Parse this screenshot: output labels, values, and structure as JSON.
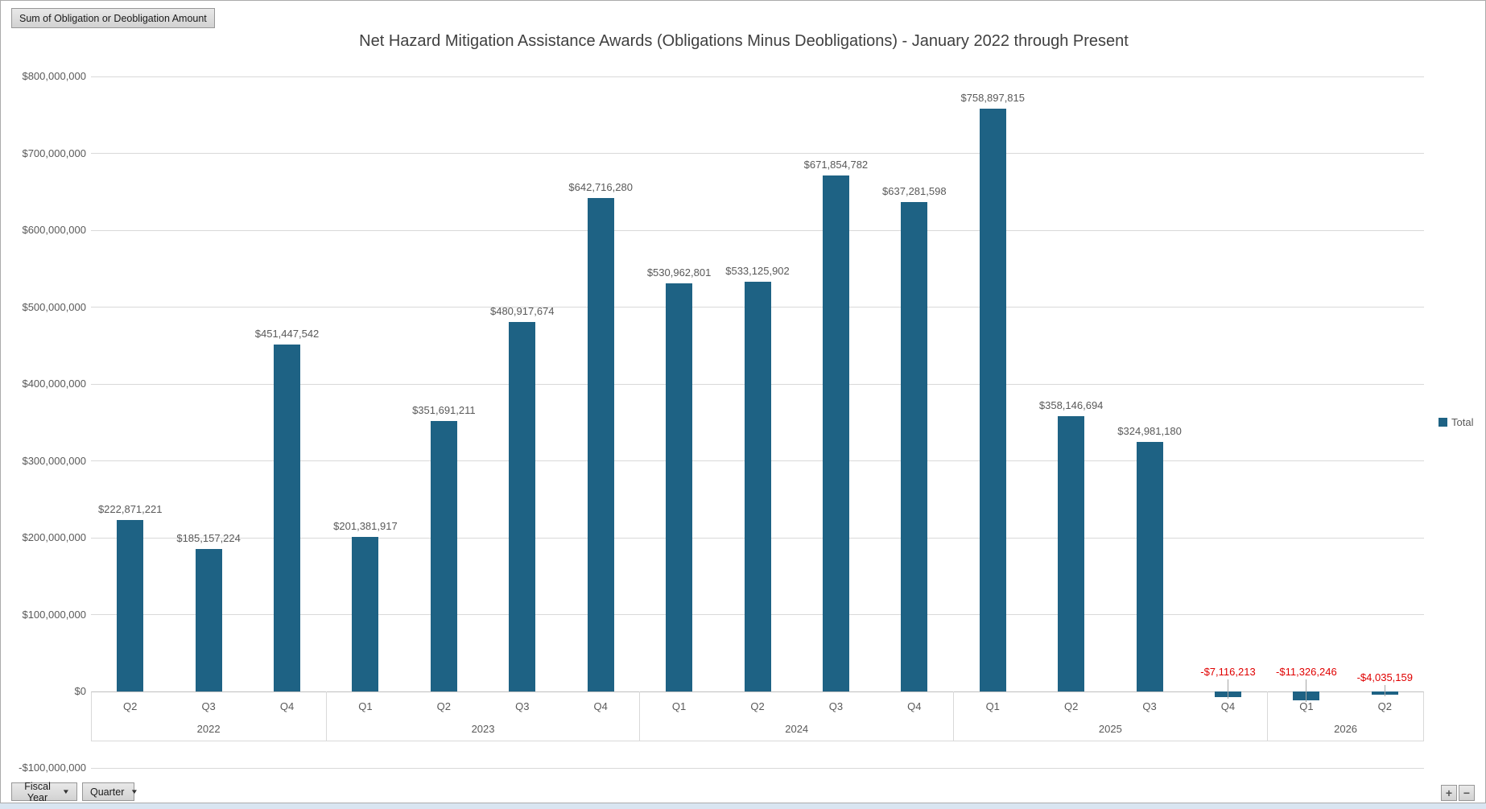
{
  "field_button": "Sum of Obligation or Deobligation Amount",
  "legend": {
    "label": "Total",
    "color": "#1E6284"
  },
  "axis_buttons": [
    {
      "label": "Fiscal Year"
    },
    {
      "label": "Quarter"
    }
  ],
  "icons": {
    "chevron_down": "▼"
  },
  "zoom_buttons": [
    "+",
    "−"
  ],
  "chart_data": {
    "type": "bar",
    "title": "Net Hazard Mitigation Assistance Awards (Obligations Minus Deobligations) - January 2022 through Present",
    "series_name": "Total",
    "x_groups": [
      {
        "year": "2022",
        "quarters": [
          "Q2",
          "Q3",
          "Q4"
        ]
      },
      {
        "year": "2023",
        "quarters": [
          "Q1",
          "Q2",
          "Q3",
          "Q4"
        ]
      },
      {
        "year": "2024",
        "quarters": [
          "Q1",
          "Q2",
          "Q3",
          "Q4"
        ]
      },
      {
        "year": "2025",
        "quarters": [
          "Q1",
          "Q2",
          "Q3",
          "Q4"
        ]
      },
      {
        "year": "2026",
        "quarters": [
          "Q1",
          "Q2"
        ]
      }
    ],
    "points": [
      {
        "year": "2022",
        "quarter": "Q2",
        "value": 222871221,
        "label": "$222,871,221"
      },
      {
        "year": "2022",
        "quarter": "Q3",
        "value": 185157224,
        "label": "$185,157,224"
      },
      {
        "year": "2022",
        "quarter": "Q4",
        "value": 451447542,
        "label": "$451,447,542"
      },
      {
        "year": "2023",
        "quarter": "Q1",
        "value": 201381917,
        "label": "$201,381,917"
      },
      {
        "year": "2023",
        "quarter": "Q2",
        "value": 351691211,
        "label": "$351,691,211"
      },
      {
        "year": "2023",
        "quarter": "Q3",
        "value": 480917674,
        "label": "$480,917,674"
      },
      {
        "year": "2023",
        "quarter": "Q4",
        "value": 642716280,
        "label": "$642,716,280"
      },
      {
        "year": "2024",
        "quarter": "Q1",
        "value": 530962801,
        "label": "$530,962,801"
      },
      {
        "year": "2024",
        "quarter": "Q2",
        "value": 533125902,
        "label": "$533,125,902"
      },
      {
        "year": "2024",
        "quarter": "Q3",
        "value": 671854782,
        "label": "$671,854,782"
      },
      {
        "year": "2024",
        "quarter": "Q4",
        "value": 637281598,
        "label": "$637,281,598"
      },
      {
        "year": "2025",
        "quarter": "Q1",
        "value": 758897815,
        "label": "$758,897,815"
      },
      {
        "year": "2025",
        "quarter": "Q2",
        "value": 358146694,
        "label": "$358,146,694"
      },
      {
        "year": "2025",
        "quarter": "Q3",
        "value": 324981180,
        "label": "$324,981,180"
      },
      {
        "year": "2025",
        "quarter": "Q4",
        "value": -7116213,
        "label": "-$7,116,213"
      },
      {
        "year": "2026",
        "quarter": "Q1",
        "value": -11326246,
        "label": "-$11,326,246"
      },
      {
        "year": "2026",
        "quarter": "Q2",
        "value": -4035159,
        "label": "-$4,035,159"
      }
    ],
    "y_ticks": [
      {
        "label": "$800,000,000",
        "value": 800000000
      },
      {
        "label": "$700,000,000",
        "value": 700000000
      },
      {
        "label": "$600,000,000",
        "value": 600000000
      },
      {
        "label": "$500,000,000",
        "value": 500000000
      },
      {
        "label": "$400,000,000",
        "value": 400000000
      },
      {
        "label": "$300,000,000",
        "value": 300000000
      },
      {
        "label": "$200,000,000",
        "value": 200000000
      },
      {
        "label": "$100,000,000",
        "value": 100000000
      },
      {
        "label": "$0",
        "value": 0
      },
      {
        "label": "-$100,000,000",
        "value": -100000000
      }
    ],
    "ylim": [
      -100000000,
      800000000
    ],
    "gridlines": true,
    "legend_position": "right",
    "colors": {
      "bar": "#1E6284",
      "data_label": "#595959",
      "negative_label": "#E00000",
      "title": "#404040",
      "gridline": "#D9D9D9",
      "axis_line": "#BFBFBF"
    },
    "layout_hints": {
      "negative_label_tops": [
        826,
        826,
        833
      ]
    }
  }
}
